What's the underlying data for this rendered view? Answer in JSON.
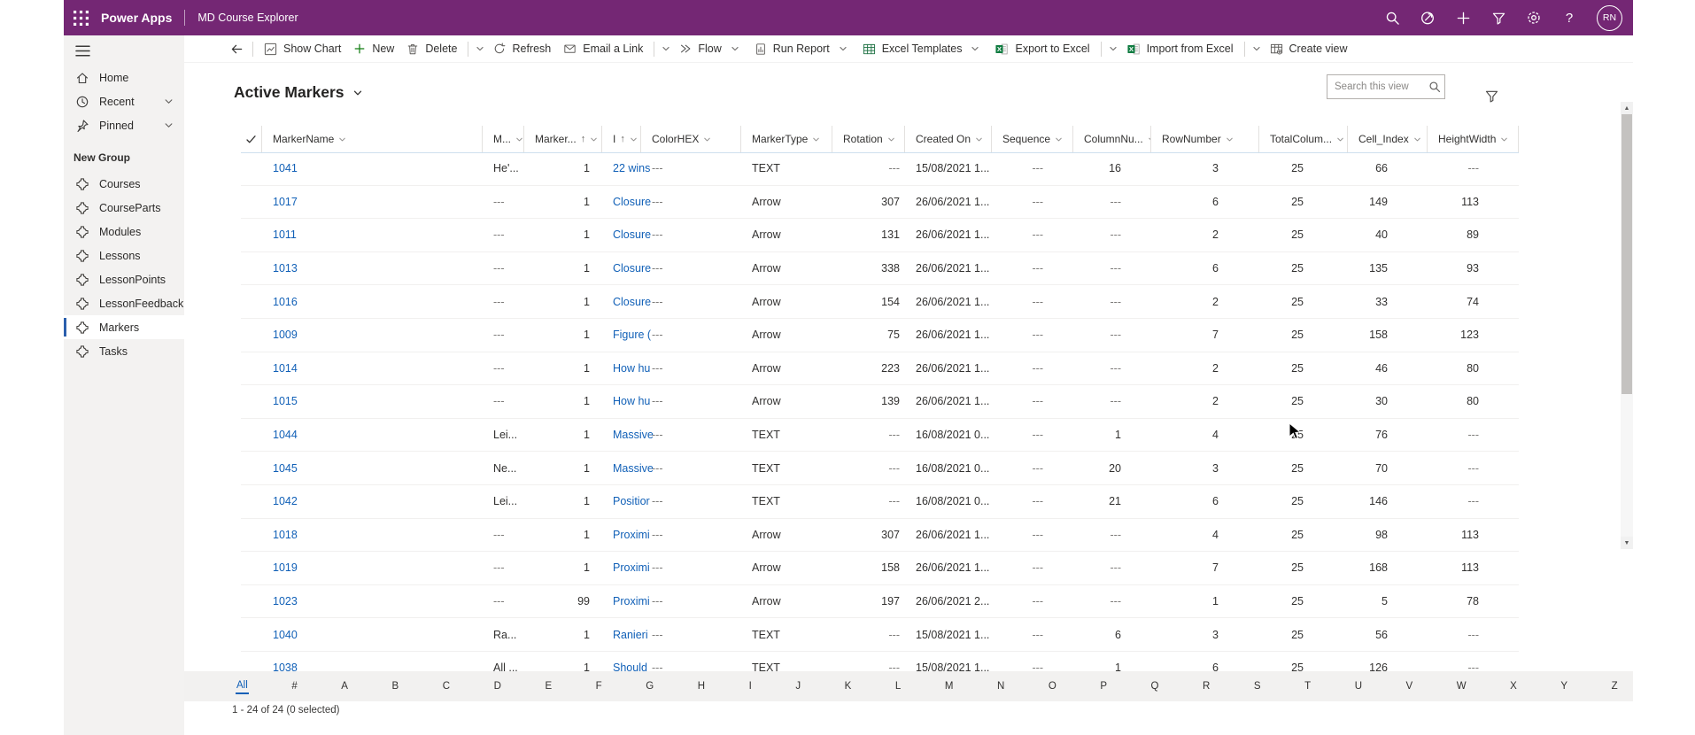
{
  "topbar": {
    "app_name": "Power Apps",
    "app_context": "MD Course Explorer",
    "avatar_initials": "RN"
  },
  "sidebar": {
    "nav": [
      {
        "label": "Home",
        "icon": "home-icon",
        "chevron": false
      },
      {
        "label": "Recent",
        "icon": "clock-icon",
        "chevron": true
      },
      {
        "label": "Pinned",
        "icon": "pin-icon",
        "chevron": true
      }
    ],
    "group_label": "New Group",
    "entities": [
      {
        "label": "Courses",
        "selected": false
      },
      {
        "label": "CourseParts",
        "selected": false
      },
      {
        "label": "Modules",
        "selected": false
      },
      {
        "label": "Lessons",
        "selected": false
      },
      {
        "label": "LessonPoints",
        "selected": false
      },
      {
        "label": "LessonFeedback",
        "selected": false
      },
      {
        "label": "Markers",
        "selected": true
      },
      {
        "label": "Tasks",
        "selected": false
      }
    ]
  },
  "command_bar": {
    "items": [
      {
        "label": "Show Chart",
        "icon": "chart",
        "chevron": false,
        "split": false
      },
      {
        "label": "New",
        "icon": "plus",
        "chevron": false,
        "split": false
      },
      {
        "label": "Delete",
        "icon": "trash",
        "chevron": false,
        "split": true
      },
      {
        "label": "Refresh",
        "icon": "refresh",
        "chevron": false,
        "split": false
      },
      {
        "label": "Email a Link",
        "icon": "email",
        "chevron": false,
        "split": true
      },
      {
        "label": "Flow",
        "icon": "flow",
        "chevron": true,
        "split": false
      },
      {
        "label": "Run Report",
        "icon": "report",
        "chevron": true,
        "split": false
      },
      {
        "label": "Excel Templates",
        "icon": "excel-grid",
        "chevron": true,
        "split": false
      },
      {
        "label": "Export to Excel",
        "icon": "excel",
        "chevron": false,
        "split": true
      },
      {
        "label": "Import from Excel",
        "icon": "excel",
        "chevron": false,
        "split": true
      },
      {
        "label": "Create view",
        "icon": "create-view",
        "chevron": false,
        "split": false
      }
    ]
  },
  "view": {
    "title": "Active Markers",
    "search_placeholder": "Search this view"
  },
  "grid": {
    "columns": [
      {
        "label": "MarkerName",
        "sorted": false
      },
      {
        "label": "M...",
        "sorted": false
      },
      {
        "label": "Marker...",
        "sorted": true
      },
      {
        "label": "I",
        "sorted": true
      },
      {
        "label": "ColorHEX",
        "sorted": false
      },
      {
        "label": "MarkerType",
        "sorted": false
      },
      {
        "label": "Rotation",
        "sorted": false
      },
      {
        "label": "Created On",
        "sorted": false
      },
      {
        "label": "Sequence",
        "sorted": false
      },
      {
        "label": "ColumnNu...",
        "sorted": false
      },
      {
        "label": "RowNumber",
        "sorted": false
      },
      {
        "label": "TotalColum...",
        "sorted": false
      },
      {
        "label": "Cell_Index",
        "sorted": false
      },
      {
        "label": "HeightWidth",
        "sorted": false
      }
    ],
    "rows": [
      [
        "1041",
        "He'...",
        "1",
        "22 wins",
        "---",
        "TEXT",
        "---",
        "15/08/2021 1...",
        "---",
        "16",
        "3",
        "25",
        "66",
        "---"
      ],
      [
        "1017",
        "---",
        "1",
        "Closure",
        "---",
        "Arrow",
        "307",
        "26/06/2021 1...",
        "---",
        "---",
        "6",
        "25",
        "149",
        "113"
      ],
      [
        "1011",
        "---",
        "1",
        "Closure",
        "---",
        "Arrow",
        "131",
        "26/06/2021 1...",
        "---",
        "---",
        "2",
        "25",
        "40",
        "89"
      ],
      [
        "1013",
        "---",
        "1",
        "Closure",
        "---",
        "Arrow",
        "338",
        "26/06/2021 1...",
        "---",
        "---",
        "6",
        "25",
        "135",
        "93"
      ],
      [
        "1016",
        "---",
        "1",
        "Closure",
        "---",
        "Arrow",
        "154",
        "26/06/2021 1...",
        "---",
        "---",
        "2",
        "25",
        "33",
        "74"
      ],
      [
        "1009",
        "---",
        "1",
        "Figure (",
        "---",
        "Arrow",
        "75",
        "26/06/2021 1...",
        "---",
        "---",
        "7",
        "25",
        "158",
        "123"
      ],
      [
        "1014",
        "---",
        "1",
        "How hu",
        "---",
        "Arrow",
        "223",
        "26/06/2021 1...",
        "---",
        "---",
        "2",
        "25",
        "46",
        "80"
      ],
      [
        "1015",
        "---",
        "1",
        "How hu",
        "---",
        "Arrow",
        "139",
        "26/06/2021 1...",
        "---",
        "---",
        "2",
        "25",
        "30",
        "80"
      ],
      [
        "1044",
        "Lei...",
        "1",
        "Massive",
        "---",
        "TEXT",
        "---",
        "16/08/2021 0...",
        "---",
        "1",
        "4",
        "25",
        "76",
        "---"
      ],
      [
        "1045",
        "Ne...",
        "1",
        "Massive",
        "---",
        "TEXT",
        "---",
        "16/08/2021 0...",
        "---",
        "20",
        "3",
        "25",
        "70",
        "---"
      ],
      [
        "1042",
        "Lei...",
        "1",
        "Positior",
        "---",
        "TEXT",
        "---",
        "16/08/2021 0...",
        "---",
        "21",
        "6",
        "25",
        "146",
        "---"
      ],
      [
        "1018",
        "---",
        "1",
        "Proximi",
        "---",
        "Arrow",
        "307",
        "26/06/2021 1...",
        "---",
        "---",
        "4",
        "25",
        "98",
        "113"
      ],
      [
        "1019",
        "---",
        "1",
        "Proximi",
        "---",
        "Arrow",
        "158",
        "26/06/2021 1...",
        "---",
        "---",
        "7",
        "25",
        "168",
        "113"
      ],
      [
        "1023",
        "---",
        "99",
        "Proximi",
        "---",
        "Arrow",
        "197",
        "26/06/2021 2...",
        "---",
        "---",
        "1",
        "25",
        "5",
        "78"
      ],
      [
        "1040",
        "Ra...",
        "1",
        "Ranieri",
        "---",
        "TEXT",
        "---",
        "15/08/2021 1...",
        "---",
        "6",
        "3",
        "25",
        "56",
        "---"
      ],
      [
        "1038",
        "All ...",
        "1",
        "Should",
        "---",
        "TEXT",
        "---",
        "15/08/2021 1...",
        "---",
        "1",
        "6",
        "25",
        "126",
        "---"
      ]
    ]
  },
  "jump_bar": {
    "items": [
      "All",
      "#",
      "A",
      "B",
      "C",
      "D",
      "E",
      "F",
      "G",
      "H",
      "I",
      "J",
      "K",
      "L",
      "M",
      "N",
      "O",
      "P",
      "Q",
      "R",
      "S",
      "T",
      "U",
      "V",
      "W",
      "X",
      "Y",
      "Z"
    ],
    "active": "All"
  },
  "status_bar": {
    "text": "1 - 24 of 24 (0 selected)"
  }
}
